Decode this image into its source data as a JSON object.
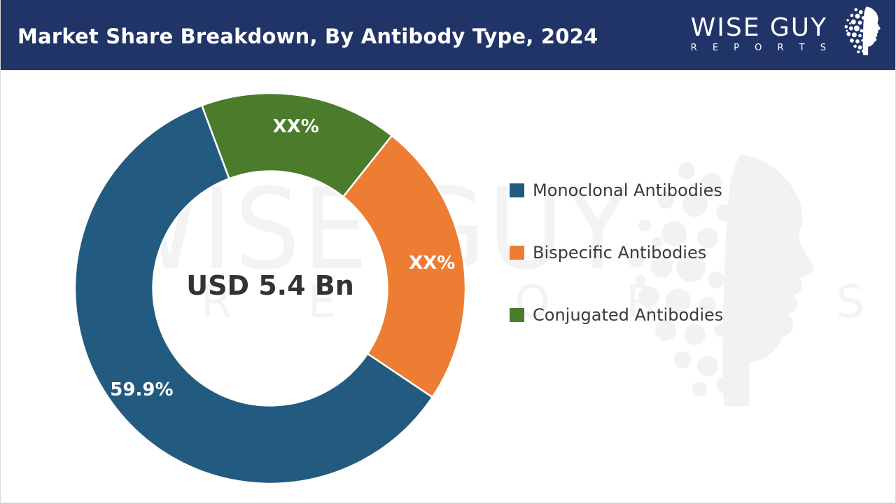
{
  "header": {
    "title": "Market Share Breakdown, By Antibody Type, 2024",
    "logo": {
      "line1": "WISE GUY",
      "line2": "R E P O R T S"
    }
  },
  "watermark": {
    "line1": "WISE GUY",
    "line2": "R E P O R T S"
  },
  "chart_data": {
    "type": "pie",
    "subtype": "donut",
    "title": "Market Share Breakdown, By Antibody Type, 2024",
    "center_label": "USD 5.4 Bn",
    "start_angle_deg": -20.5,
    "inner_radius_ratio": 0.6,
    "legend_position": "right",
    "series": [
      {
        "name": "Monoclonal Antibodies",
        "value_pct": 59.9,
        "label": "59.9%",
        "color": "#235a80"
      },
      {
        "name": "Bispecific Antibodies",
        "value_pct": 23.7,
        "label": "XX%",
        "color": "#ec7d33"
      },
      {
        "name": "Conjugated Antibodies",
        "value_pct": 16.4,
        "label": "XX%",
        "color": "#4a7c2b"
      }
    ]
  },
  "colors": {
    "header_bg": "#213468",
    "center_text": "#333333",
    "legend_text": "#3a3a3a",
    "watermark": "#f2f2f2",
    "segment_gap": "#ffffff"
  }
}
